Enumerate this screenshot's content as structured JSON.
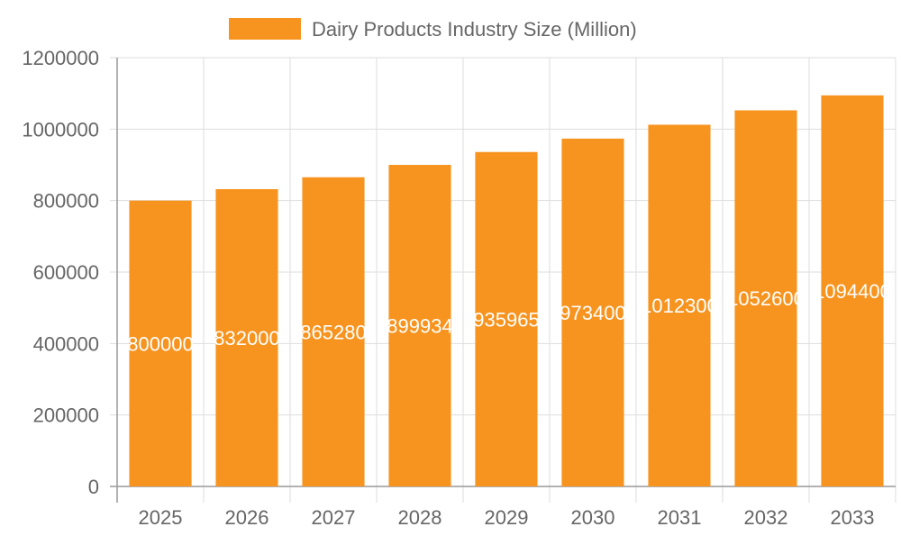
{
  "chart_data": {
    "type": "bar",
    "title": "",
    "xlabel": "",
    "ylabel": "",
    "categories": [
      "2025",
      "2026",
      "2027",
      "2028",
      "2029",
      "2030",
      "2031",
      "2032",
      "2033"
    ],
    "series": [
      {
        "name": "Dairy Products Industry Size (Million)",
        "values": [
          800000,
          832000,
          865280,
          899934,
          935965,
          973400,
          1012300,
          1052600,
          1094400
        ],
        "color": "#f7941f"
      }
    ],
    "ylim": [
      0,
      1200000
    ],
    "yticks": [
      0,
      200000,
      400000,
      600000,
      800000,
      1000000,
      1200000
    ],
    "grid": true,
    "legend": "top",
    "data_labels": true
  }
}
